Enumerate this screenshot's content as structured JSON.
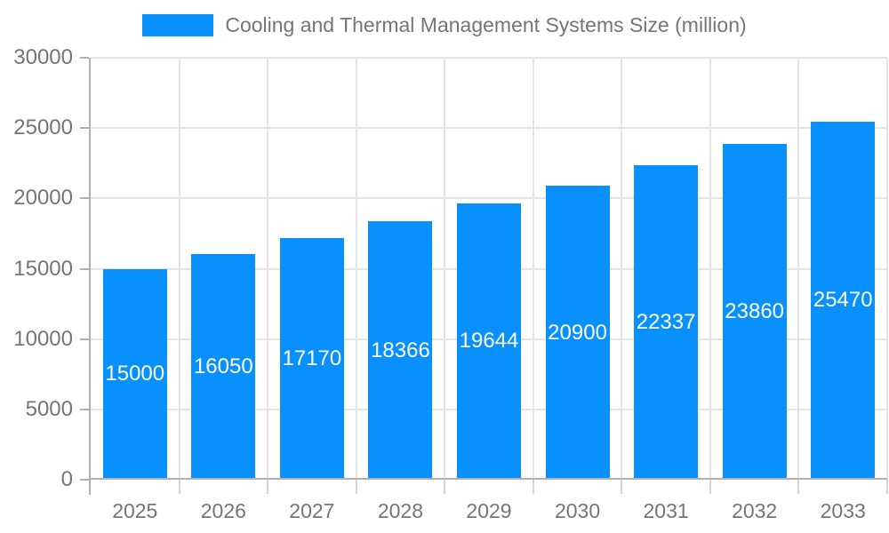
{
  "legend": {
    "label": "Cooling and Thermal Management Systems Size (million)"
  },
  "chart_data": {
    "type": "bar",
    "title": "Cooling and Thermal Management Systems Size (million)",
    "series_name": "Cooling and Thermal Management Systems Size (million)",
    "categories": [
      "2025",
      "2026",
      "2027",
      "2028",
      "2029",
      "2030",
      "2031",
      "2032",
      "2033"
    ],
    "values": [
      15000,
      16050,
      17170,
      18366,
      19644,
      20900,
      22337,
      23860,
      25470
    ],
    "xlabel": "",
    "ylabel": "",
    "ylim": [
      0,
      30000
    ],
    "yticks": [
      0,
      5000,
      10000,
      15000,
      20000,
      25000,
      30000
    ],
    "grid": true,
    "legend_position": "top-center",
    "value_labels": "inside-middle",
    "colors": {
      "bar": "#0890fc",
      "bar_label": "#ffffff",
      "axis_text": "#757575",
      "axis_line": "#b0b0b0",
      "gridline": "#e4e4e4",
      "minor_tick": "#d4d4d4",
      "background": "#ffffff"
    }
  }
}
